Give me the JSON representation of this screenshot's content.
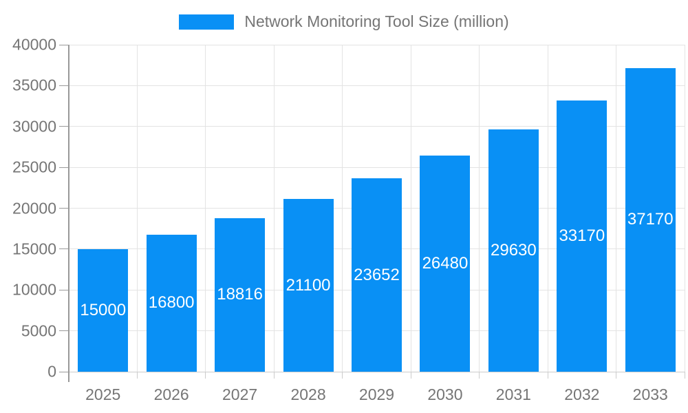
{
  "legend": {
    "label": "Network Monitoring Tool Size (million)"
  },
  "colors": {
    "bar": "#0990f5",
    "axis_text": "#757575",
    "bar_label_text": "#ffffff",
    "grid_line": "#e3e3e3",
    "y_axis_line": "#999999",
    "x_axis_line": "#cccccc",
    "y_tick": "#999999",
    "x_tick": "#cccccc",
    "background": "#ffffff"
  },
  "chart_data": {
    "type": "bar",
    "title": "Network Monitoring Tool Size (million)",
    "series_name": "Network Monitoring Tool Size (million)",
    "categories": [
      "2025",
      "2026",
      "2027",
      "2028",
      "2029",
      "2030",
      "2031",
      "2032",
      "2033"
    ],
    "values": [
      15000,
      16800,
      18816,
      21100,
      23652,
      26480,
      29630,
      33170,
      37170
    ],
    "bar_value_labels": [
      "15000",
      "16800",
      "18816",
      "21100",
      "23652",
      "26480",
      "29630",
      "33170",
      "37170"
    ],
    "xlabel": "",
    "ylabel": "",
    "ylim": [
      0,
      40000
    ],
    "ytick_step": 5000,
    "ytick_labels": [
      "0",
      "5000",
      "10000",
      "15000",
      "20000",
      "25000",
      "30000",
      "35000",
      "40000"
    ],
    "grid": true,
    "legend_position": "top"
  }
}
